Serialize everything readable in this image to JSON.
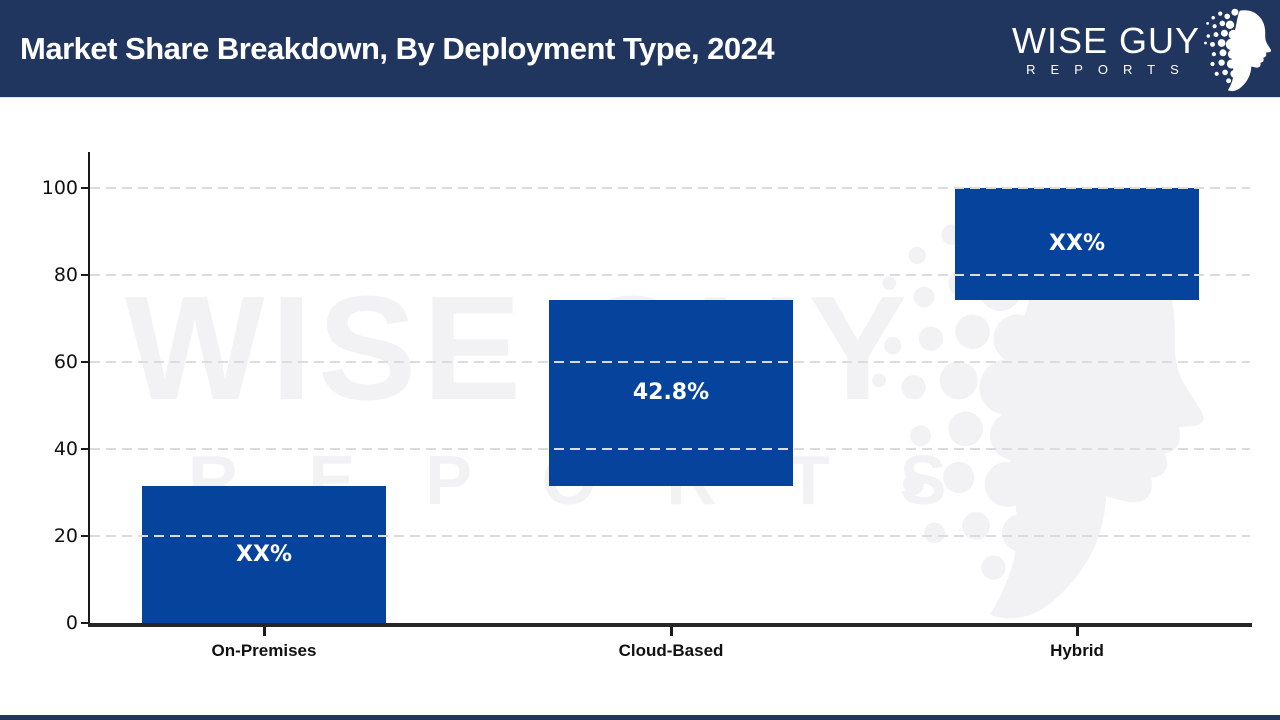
{
  "header": {
    "title": "Market Share Breakdown, By Deployment Type, 2024",
    "logo": {
      "line1": "WISE GUY",
      "line2": "REPORTS"
    }
  },
  "watermark": {
    "line1": "WISE GUY",
    "line2": "REPORTS"
  },
  "colors": {
    "header_bg": "#20365f",
    "bar": "#05439d",
    "bar_label": "#ffffff",
    "grid": "#dcdcdc",
    "axis": "#1a1a1a",
    "watermark": "#f2f2f5",
    "page_bg": "#ffffff"
  },
  "chart_data": {
    "type": "bar",
    "subtype": "floating-waterfall",
    "title": "Market Share Breakdown, By Deployment Type, 2024",
    "categories": [
      "On-Premises",
      "Cloud-Based",
      "Hybrid"
    ],
    "series": [
      {
        "name": "Market Share (%)",
        "points": [
          {
            "category": "On-Premises",
            "base": 0,
            "top": 31.5,
            "value": 31.5,
            "label": "XX%"
          },
          {
            "category": "Cloud-Based",
            "base": 31.5,
            "top": 74.3,
            "value": 42.8,
            "label": "42.8%"
          },
          {
            "category": "Hybrid",
            "base": 74.3,
            "top": 100,
            "value": 25.7,
            "label": "XX%"
          }
        ]
      }
    ],
    "xlabel": "",
    "ylabel": "",
    "ylim": [
      0,
      105
    ],
    "yticks": [
      0,
      20,
      40,
      60,
      80,
      100
    ],
    "grid": "horizontal-dashed",
    "legend": "none",
    "bar_color": "#05439d"
  }
}
